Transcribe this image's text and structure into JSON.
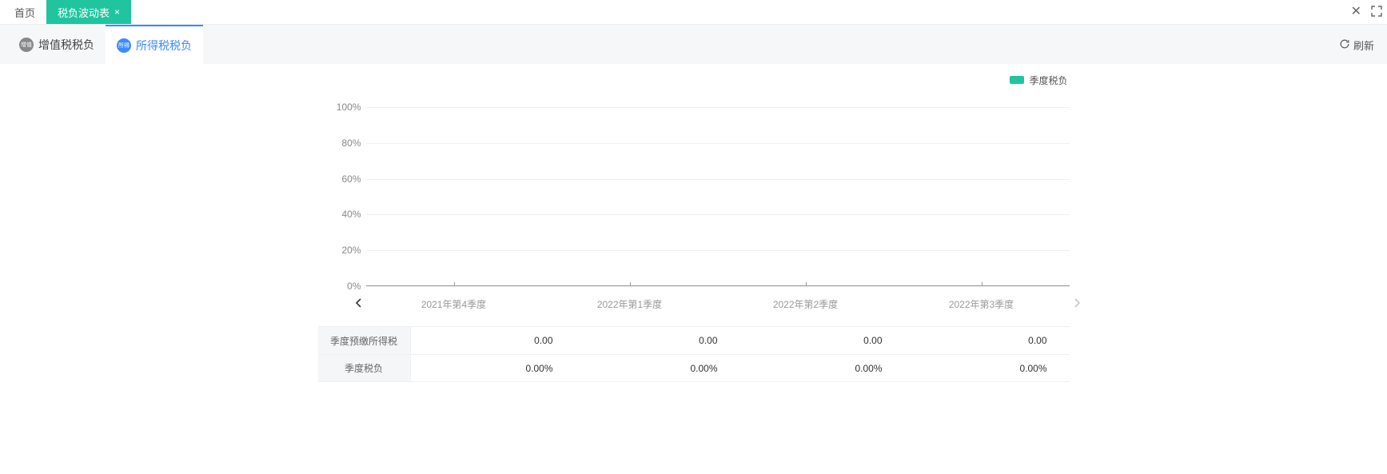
{
  "topnav": {
    "tabs": [
      {
        "label": "首页",
        "active": false,
        "closable": false
      },
      {
        "label": "税负波动表",
        "active": true,
        "closable": true
      }
    ]
  },
  "subtabs": [
    {
      "label": "增值税税负",
      "badge_text": "增值",
      "active": false
    },
    {
      "label": "所得税税负",
      "badge_text": "所得",
      "active": true
    }
  ],
  "refresh_label": "刷新",
  "chart": {
    "type": "bar",
    "legend_label": "季度税负",
    "legend_color": "#20c5a0",
    "ylim": [
      0,
      100
    ],
    "yticks": [
      0,
      20,
      40,
      60,
      80,
      100
    ],
    "ytick_labels": [
      "0%",
      "20%",
      "40%",
      "60%",
      "80%",
      "100%"
    ],
    "grid_color": "#eef0f2",
    "axis_color": "#999999",
    "categories": [
      "2021年第4季度",
      "2022年第1季度",
      "2022年第2季度",
      "2022年第3季度"
    ],
    "values": [
      0,
      0,
      0,
      0
    ],
    "bar_color": "#20c5a0",
    "background_color": "#ffffff"
  },
  "table": {
    "rows": [
      {
        "header": "季度预缴所得税",
        "cells": [
          "0.00",
          "0.00",
          "0.00",
          "0.00"
        ]
      },
      {
        "header": "季度税负",
        "cells": [
          "0.00%",
          "0.00%",
          "0.00%",
          "0.00%"
        ]
      }
    ]
  }
}
